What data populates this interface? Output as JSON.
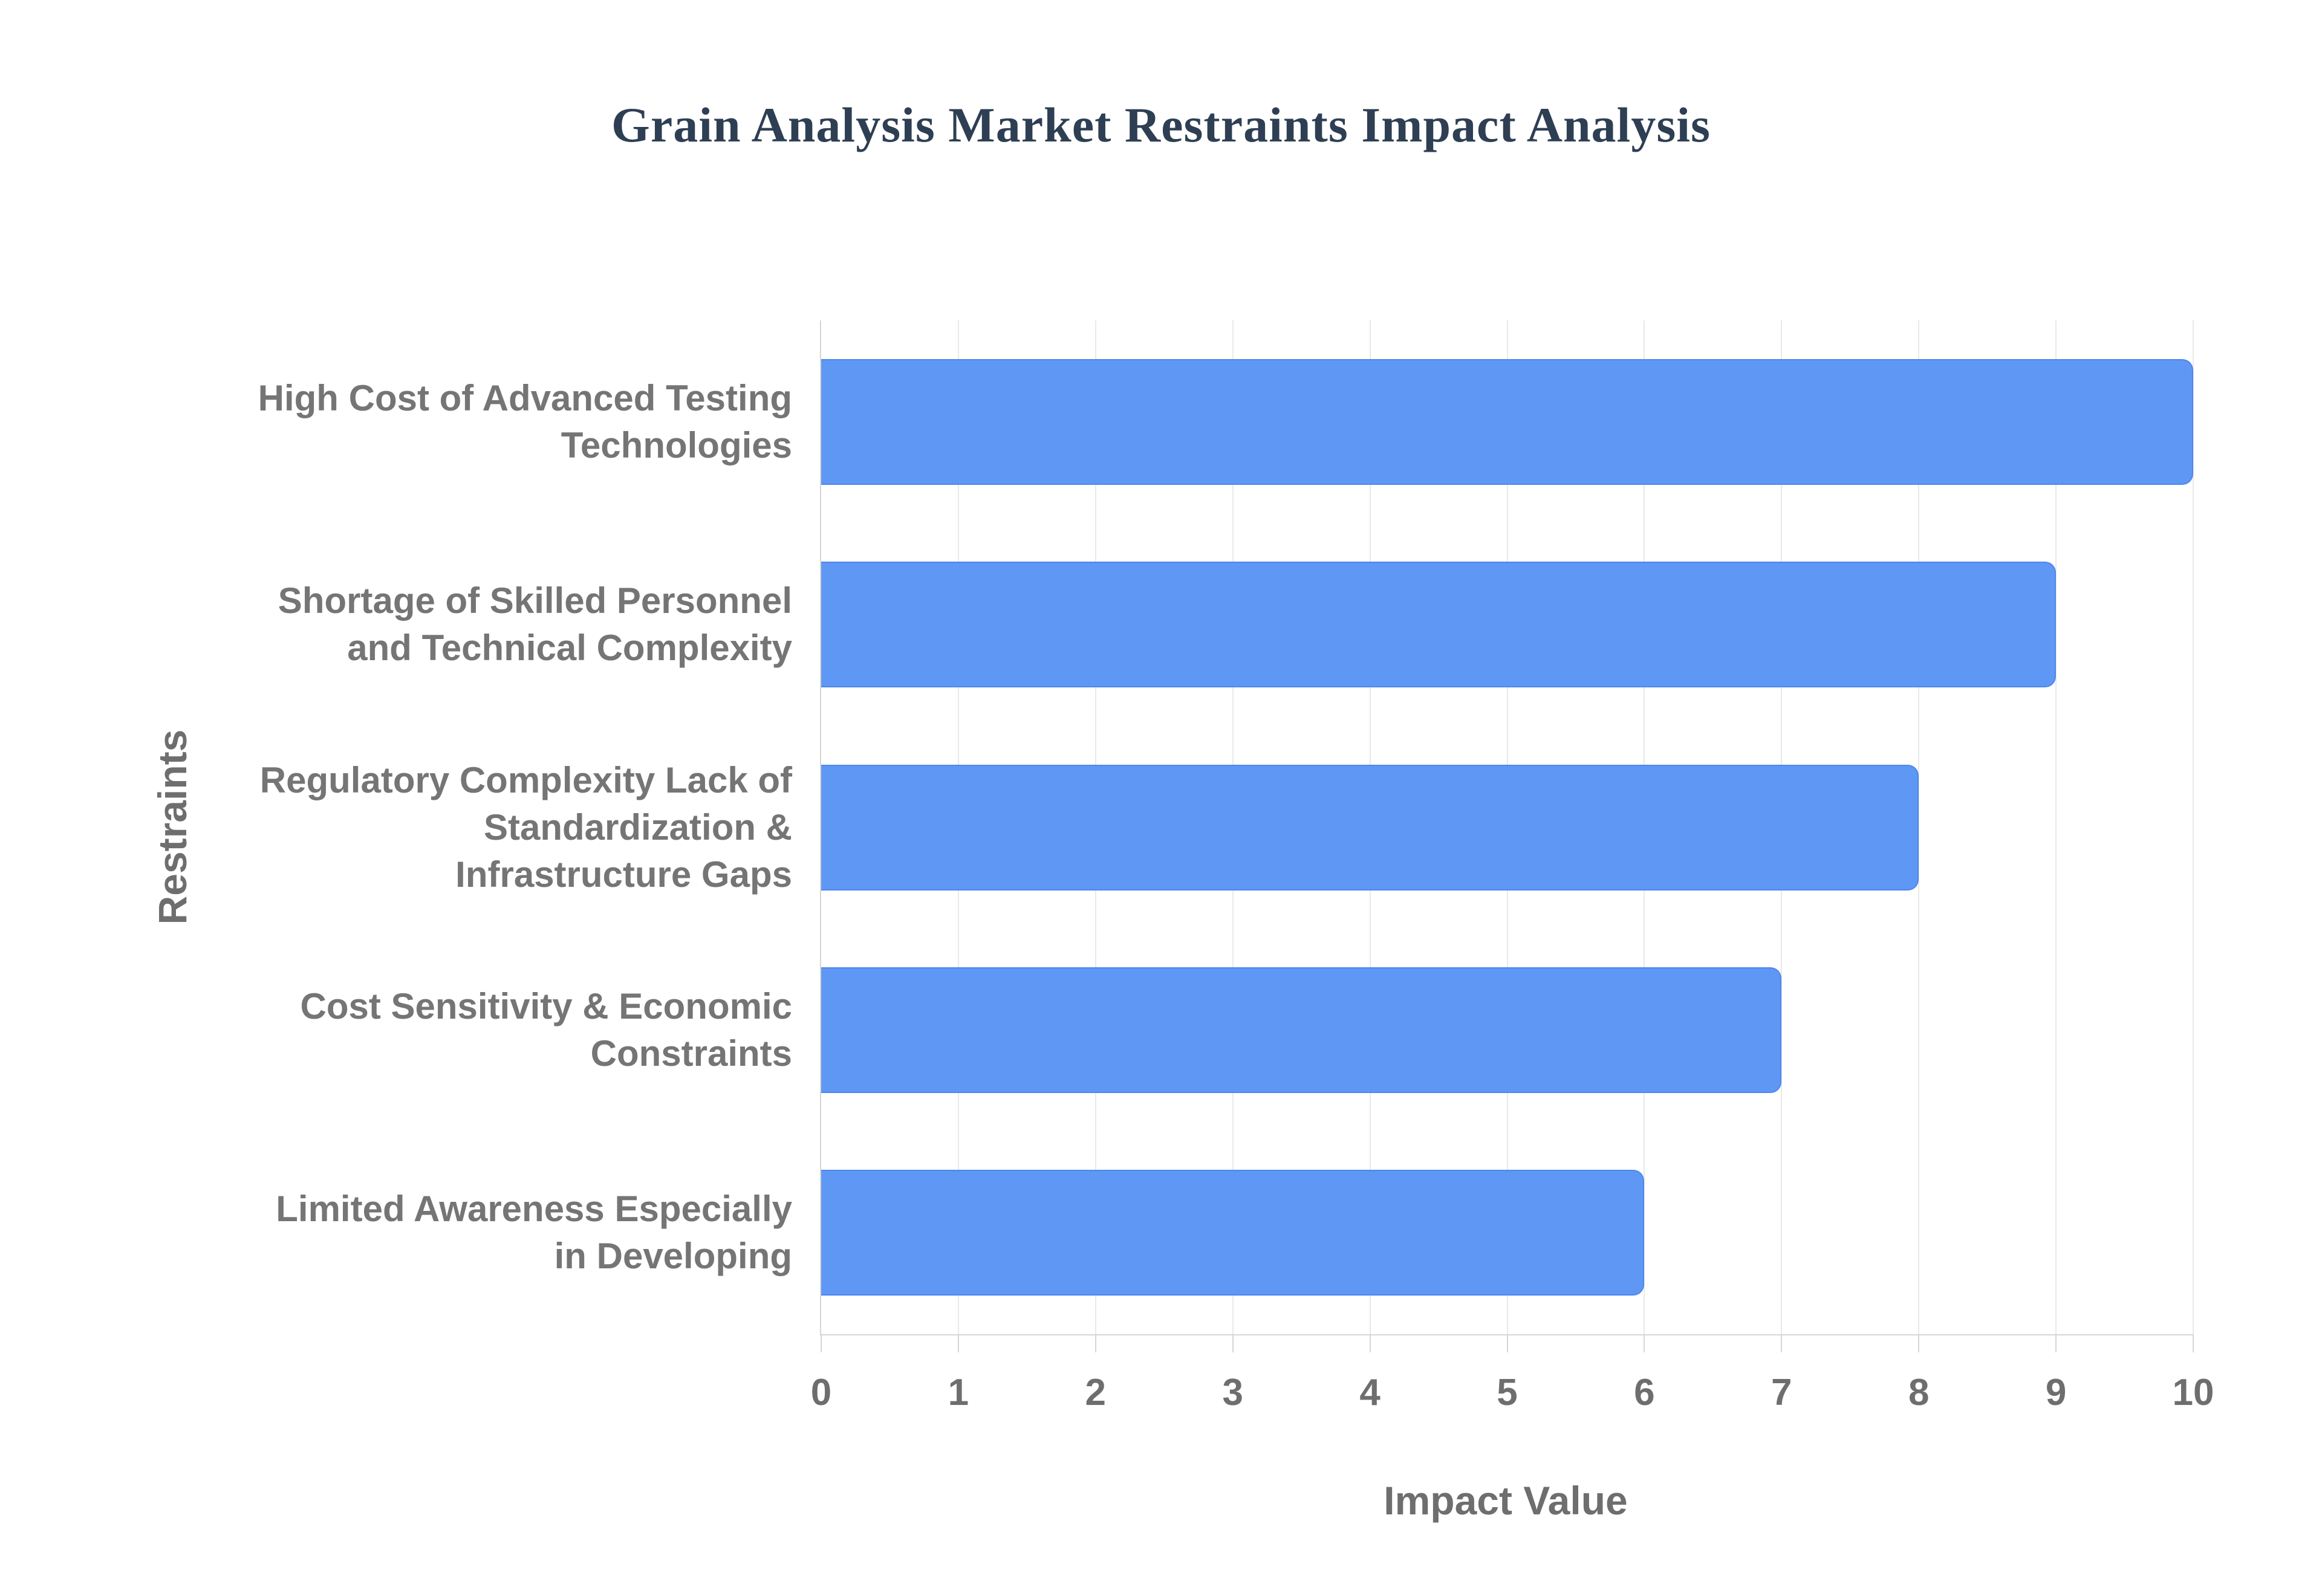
{
  "title": "Grain Analysis Market Restraints Impact Analysis",
  "chart_data": {
    "type": "bar",
    "orientation": "horizontal",
    "title": "Grain Analysis Market Restraints Impact Analysis",
    "categories": [
      "High Cost of Advanced Testing\nTechnologies",
      "Shortage of Skilled Personnel\nand Technical Complexity",
      "Regulatory Complexity Lack of\nStandardization &\nInfrastructure Gaps",
      "Cost Sensitivity & Economic\nConstraints",
      "Limited Awareness Especially\nin Developing"
    ],
    "values": [
      10,
      9,
      8,
      7,
      6
    ],
    "xlabel": "Impact Value",
    "ylabel": "Restraints",
    "xlim": [
      0,
      10
    ],
    "x_ticks": [
      0,
      1,
      2,
      3,
      4,
      5,
      6,
      7,
      8,
      9,
      10
    ],
    "grid": "vertical-only",
    "legend": "none"
  },
  "colors": {
    "title": "#2e3f54",
    "bar_fill": "#5f97f5",
    "bar_border": "#4d86ee",
    "category_label": "#757575",
    "tick_label": "#6e6e6e",
    "axis_title": "#6e6e6e",
    "gridline": "#e9e9e9",
    "axis_line": "#d6d6d6",
    "background": "#ffffff"
  }
}
